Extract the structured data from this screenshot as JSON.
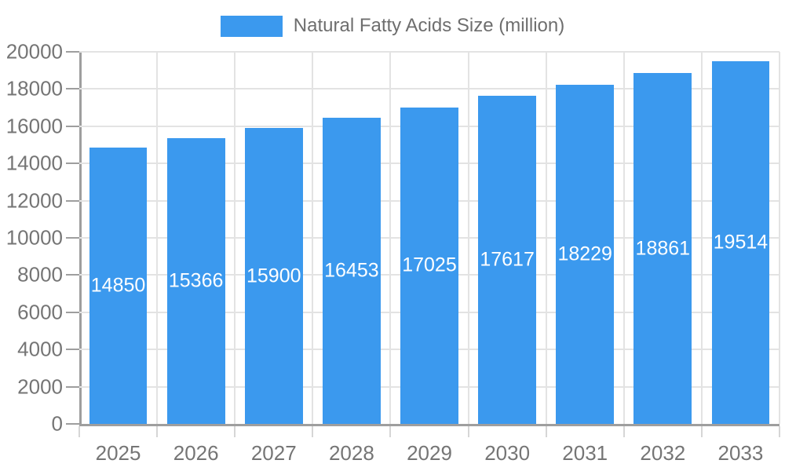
{
  "chart_data": {
    "type": "bar",
    "title": "Natural Fatty Acids Size (million)",
    "categories": [
      "2025",
      "2026",
      "2027",
      "2028",
      "2029",
      "2030",
      "2031",
      "2032",
      "2033"
    ],
    "values": [
      14850,
      15366,
      15900,
      16453,
      17025,
      17617,
      18229,
      18861,
      19514
    ],
    "value_labels": [
      "14850",
      "15366",
      "15900",
      "16453",
      "17025",
      "17617",
      "18229",
      "18861",
      "19514"
    ],
    "ytick_labels": [
      "0",
      "2000",
      "4000",
      "6000",
      "8000",
      "10000",
      "12000",
      "14000",
      "16000",
      "18000",
      "20000"
    ],
    "ylim": [
      0,
      20000
    ],
    "ytick_step": 2000,
    "grid": true,
    "legend_position": "top",
    "xlabel": "",
    "ylabel": "",
    "colors": {
      "bar": "#3B99EE",
      "value_label": "#FFFFFF",
      "axis": "#9E9E9E",
      "grid": "#E3E3E3",
      "x_tick": "#D6D6D6",
      "tick_label": "#757575",
      "legend_text": "#6E6E6E",
      "background": "#FFFFFF"
    }
  }
}
